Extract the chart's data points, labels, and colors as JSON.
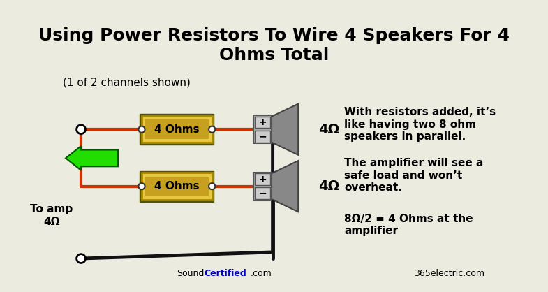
{
  "title": "Using Power Resistors To Wire 4 Speakers For 4\nOhms Total",
  "bg_color": "#EBEBDF",
  "subtitle": "(1 of 2 channels shown)",
  "note1": "With resistors added, it’s\nlike having two 8 ohm\nspeakers in parallel.",
  "note2": "The amplifier will see a\nsafe load and won’t\noverheat.",
  "note3": "8Ω/2 = 4 Ohms at the\namplifier",
  "label_top": "4Ω",
  "label_bot": "4Ω",
  "amp_label": "To amp\n4Ω",
  "resistor_label": "4 Ohms",
  "footer_right": "365electric.com",
  "wire_red": "#CC3300",
  "wire_black": "#111111",
  "resistor_fill": "#E8C840",
  "resistor_stroke": "#555500",
  "arrow_green": "#22DD00",
  "speaker_gray": "#888888"
}
